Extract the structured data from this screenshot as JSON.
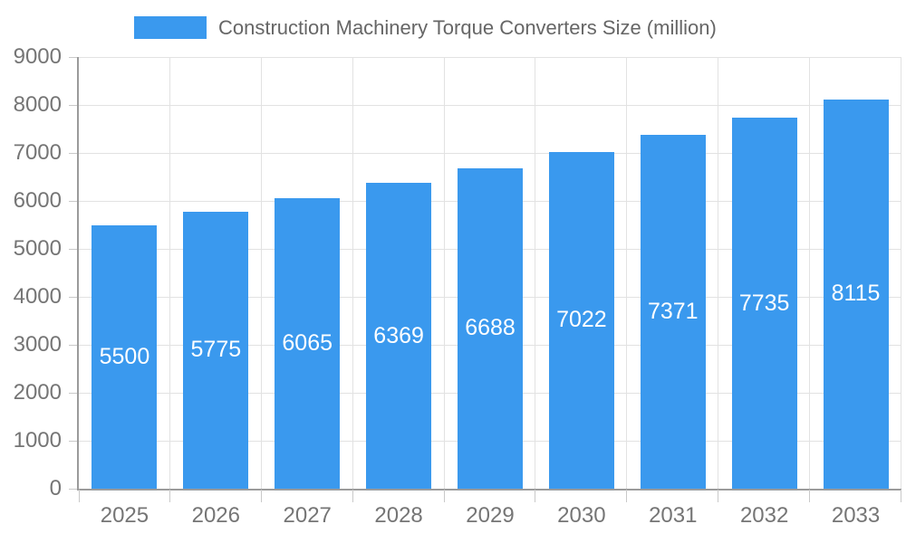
{
  "chart_data": {
    "type": "bar",
    "title": "Construction Machinery Torque Converters Size (million)",
    "legend": [
      "Construction Machinery Torque Converters Size (million)"
    ],
    "legend_position": "top",
    "categories": [
      "2025",
      "2026",
      "2027",
      "2028",
      "2029",
      "2030",
      "2031",
      "2032",
      "2033"
    ],
    "values": [
      5500,
      5775,
      6065,
      6369,
      6688,
      7022,
      7371,
      7735,
      8115
    ],
    "xlabel": "",
    "ylabel": "",
    "ylim": [
      0,
      9000
    ],
    "ytick_step": 1000,
    "yticks": [
      "0",
      "1000",
      "2000",
      "3000",
      "4000",
      "5000",
      "6000",
      "7000",
      "8000",
      "9000"
    ],
    "grid": true,
    "value_label_position": "inside-center"
  },
  "colors": {
    "bar": "#3A99EE",
    "grid": "#E2E2E2",
    "axis": "#9B9B9B",
    "tick": "#C9C9C9",
    "tick_text": "#757575",
    "legend_text": "#666666",
    "value_text": "#FFFFFF",
    "background": "#FFFFFF"
  }
}
